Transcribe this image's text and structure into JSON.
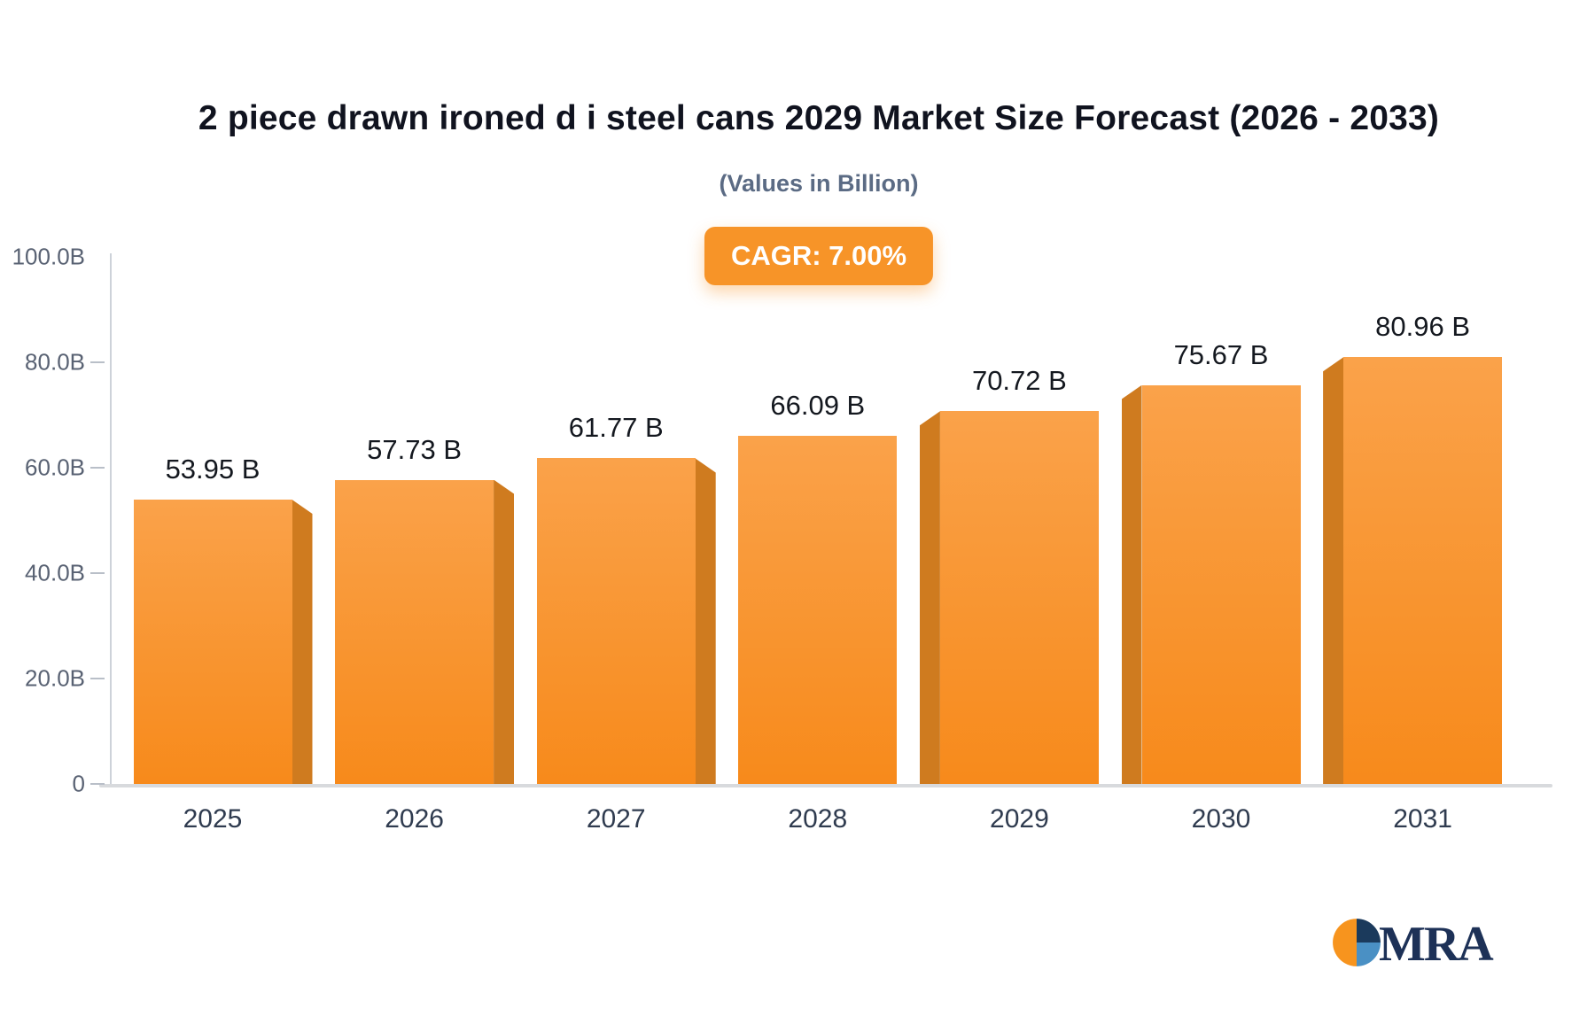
{
  "title": "2 piece drawn ironed d i steel cans 2029 Market Size Forecast (2026 - 2033)",
  "subtitle": "(Values in Billion)",
  "cagr_badge": "CAGR: 7.00%",
  "logo": {
    "text": "MRA"
  },
  "colors": {
    "accent": "#f79428",
    "bar_top": "#faa24a",
    "bar_bottom": "#f78a1b",
    "bar_side": "#cf7b1f",
    "logo_orange": "#f7941e",
    "logo_navy": "#1b3a5c",
    "logo_blue": "#4a90c4"
  },
  "chart_data": {
    "type": "bar",
    "title": "2 piece drawn ironed d i steel cans 2029 Market Size Forecast (2026 - 2033)",
    "subtitle": "(Values in Billion)",
    "categories": [
      "2025",
      "2026",
      "2027",
      "2028",
      "2029",
      "2030",
      "2031"
    ],
    "values": [
      53.95,
      57.73,
      61.77,
      66.09,
      70.72,
      75.67,
      80.96
    ],
    "value_labels": [
      "53.95 B",
      "57.73 B",
      "61.77 B",
      "66.09 B",
      "70.72 B",
      "75.67 B",
      "80.96 B"
    ],
    "xlabel": "",
    "ylabel": "",
    "ylim": [
      0,
      100
    ],
    "yticks": [
      {
        "value": 100,
        "label": "100.0B"
      },
      {
        "value": 80,
        "label": "80.0B"
      },
      {
        "value": 60,
        "label": "60.0B"
      },
      {
        "value": 40,
        "label": "40.0B"
      },
      {
        "value": 20,
        "label": "20.0B"
      },
      {
        "value": 0,
        "label": "0"
      }
    ],
    "grid": false,
    "legend_position": "none",
    "annotation": "CAGR: 7.00%"
  }
}
